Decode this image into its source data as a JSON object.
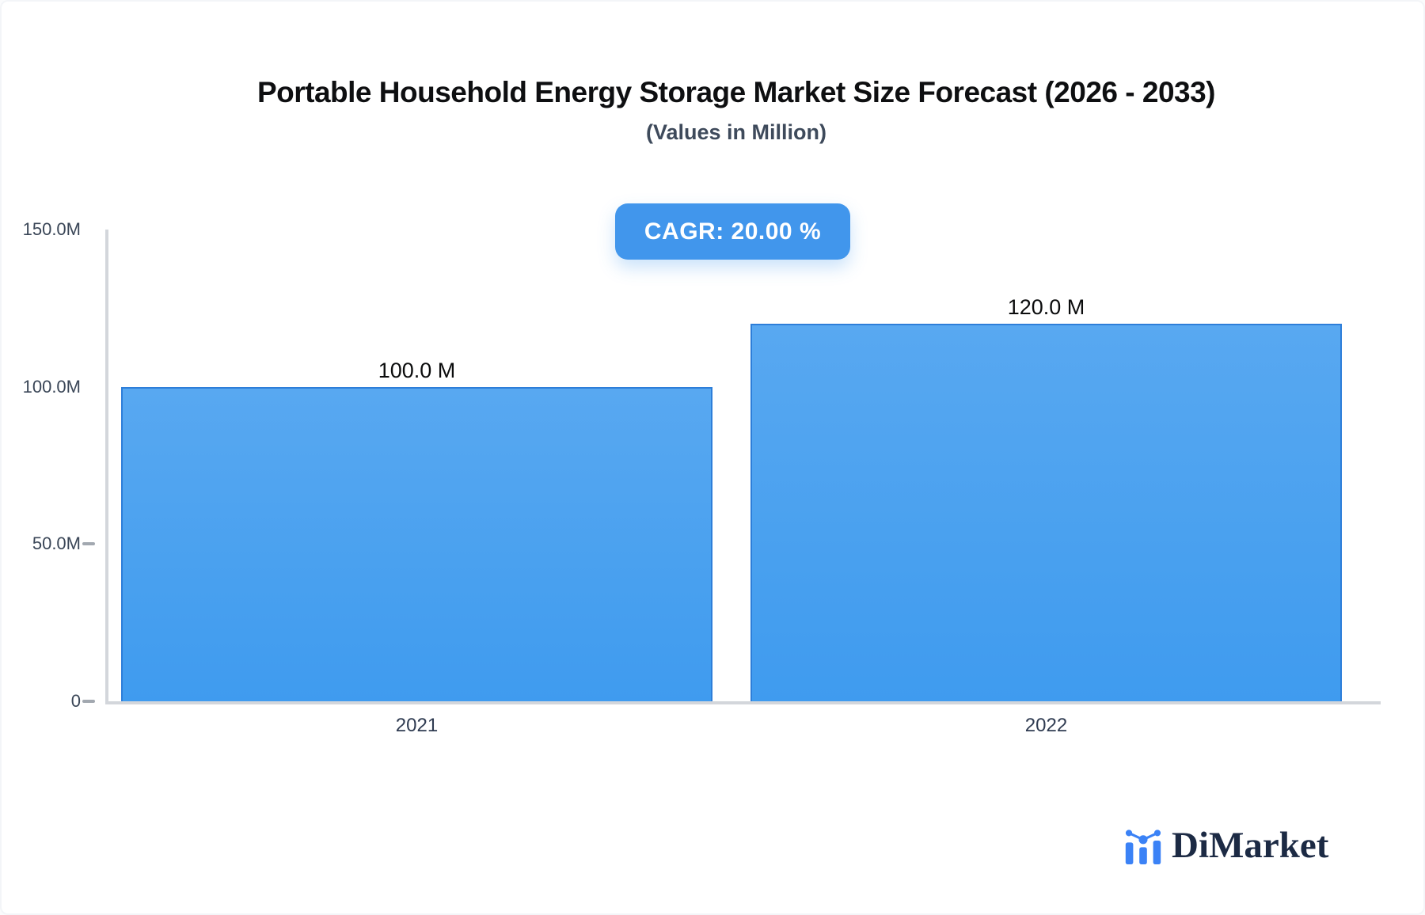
{
  "header": {
    "title": "Portable Household Energy Storage Market Size Forecast (2026 - 2033)",
    "subtitle": "(Values in Million)"
  },
  "cagr_badge": {
    "label": "CAGR: 20.00 %",
    "bg_color": "#4196ec",
    "text_color": "#ffffff"
  },
  "chart_data": {
    "type": "bar",
    "categories": [
      "2021",
      "2022"
    ],
    "values": [
      100.0,
      120.0
    ],
    "value_labels": [
      "100.0 M",
      "120.0 M"
    ],
    "title": "Portable Household Energy Storage Market Size Forecast (2026 - 2033)",
    "xlabel": "",
    "ylabel": "",
    "unit": "Million",
    "ylim": [
      0,
      150
    ],
    "yticks": [
      {
        "value": 150,
        "label": "150.0M",
        "dash": false
      },
      {
        "value": 100,
        "label": "100.0M",
        "dash": false
      },
      {
        "value": 50,
        "label": "50.0M",
        "dash": true
      },
      {
        "value": 0,
        "label": "0",
        "dash": true
      }
    ],
    "grid": false,
    "legend": null,
    "bar_fill_top": "#58a8f1",
    "bar_fill_bottom": "#3f9bef",
    "bar_border_color": "#2d7ed9",
    "axis_color": "#d3d6db"
  },
  "branding": {
    "logo_text": "DiMarket",
    "logo_icon": "bar-line-chart-icon",
    "text_color": "#1c2a44",
    "icon_color": "#3b82f6"
  }
}
